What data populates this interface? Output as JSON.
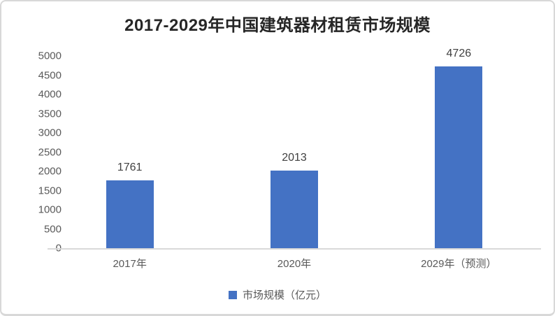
{
  "title": "2017-2029年中国建筑器材租赁市场规模",
  "chart_data": {
    "type": "bar",
    "title": "2017-2029年中国建筑器材租赁市场规模",
    "categories": [
      "2017年",
      "2020年",
      "2029年（预测）"
    ],
    "series": [
      {
        "name": "市场规模（亿元）",
        "values": [
          1761,
          2013,
          4726
        ]
      }
    ],
    "data_labels_shown": true,
    "xlabel": "",
    "ylabel": "",
    "ylim": [
      0,
      5000
    ],
    "ytick_step": 500,
    "grid": false,
    "legend_position": "bottom",
    "bar_color": "#4472C4"
  },
  "legend": {
    "swatch_icon": "blue-square-swatch",
    "label": "市场规模（亿元）"
  },
  "colors": {
    "bar": "#4472C4",
    "axis_text": "#595959",
    "data_label_text": "#404040",
    "title_text": "#262626",
    "baseline": "#D9D9D9"
  }
}
